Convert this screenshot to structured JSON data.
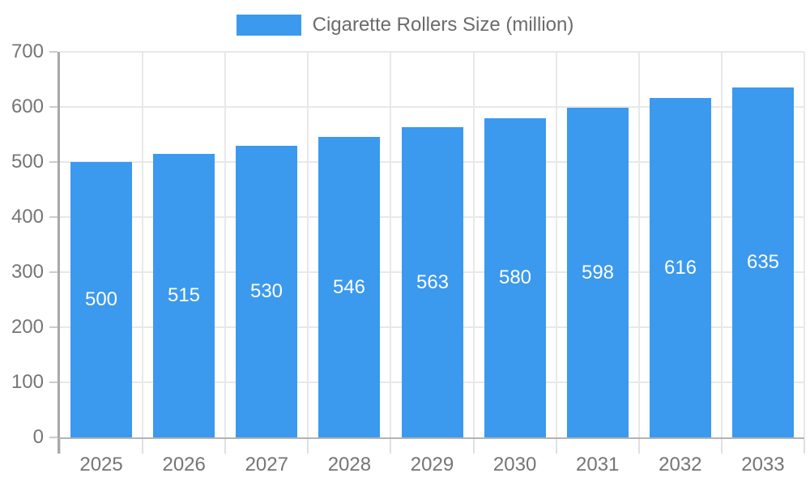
{
  "chart_data": {
    "type": "bar",
    "title": "Cigarette Rollers Size (million)",
    "legend": {
      "label": "Cigarette Rollers Size (million)",
      "position": "top"
    },
    "categories": [
      "2025",
      "2026",
      "2027",
      "2028",
      "2029",
      "2030",
      "2031",
      "2032",
      "2033"
    ],
    "series": [
      {
        "name": "Cigarette Rollers Size (million)",
        "values": [
          500,
          515,
          530,
          546,
          563,
          580,
          598,
          616,
          635
        ]
      }
    ],
    "bar_value_labels": [
      "500",
      "515",
      "530",
      "546",
      "563",
      "580",
      "598",
      "616",
      "635"
    ],
    "xlabel": "",
    "ylabel": "",
    "ylim": [
      0,
      700
    ],
    "y_ticks": [
      0,
      100,
      200,
      300,
      400,
      500,
      600,
      700
    ],
    "grid": true,
    "colors": {
      "bar": "#3b99ee",
      "bar_label": "#ffffff",
      "axis_label": "#757575",
      "legend_label": "#6b6b6b",
      "gridline": "#e8e8e8",
      "x_axis_line": "#b3b3b3",
      "y_axis_line": "#a8a8a8"
    }
  }
}
